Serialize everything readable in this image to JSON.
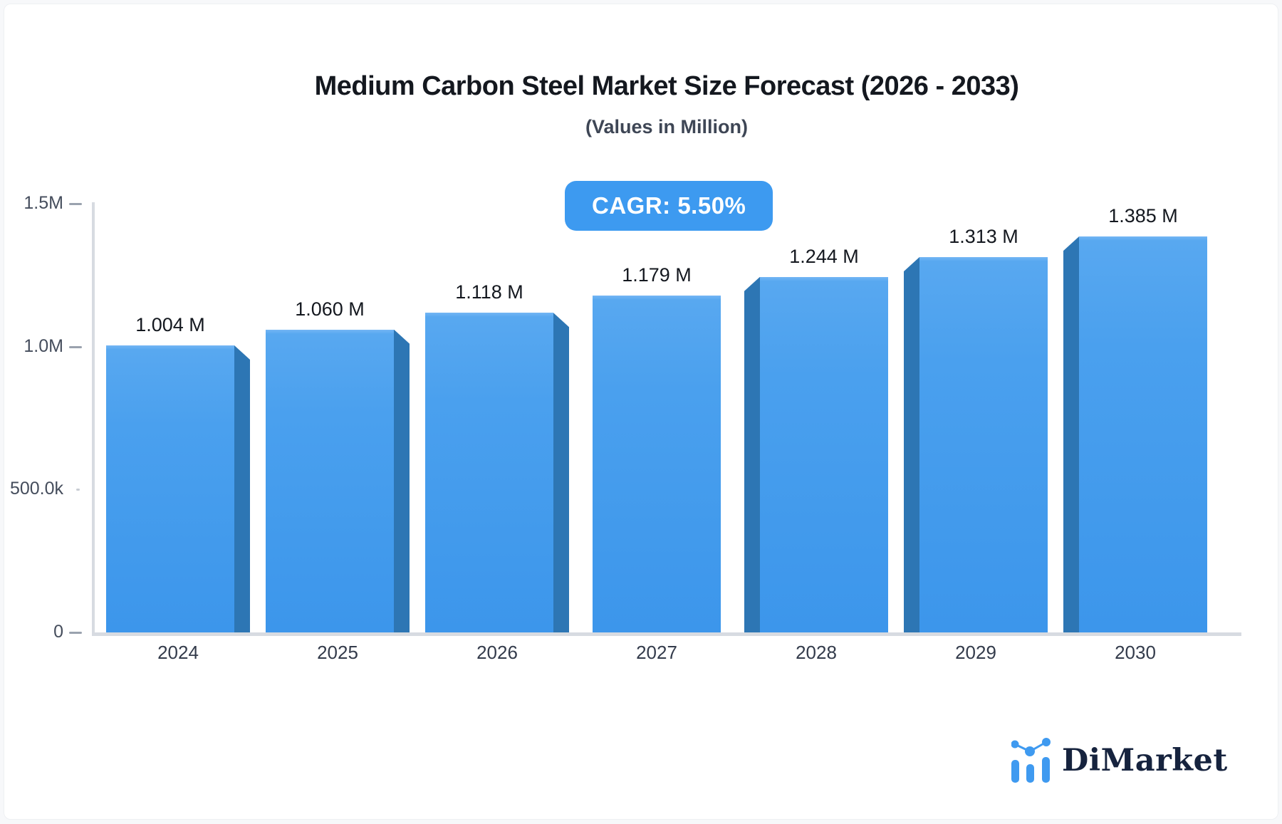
{
  "page": {
    "background": "#f7f8fa",
    "card_background": "#ffffff"
  },
  "header": {
    "title": "Medium Carbon Steel Market Size Forecast (2026 - 2033)",
    "subtitle": "(Values in Million)",
    "cagr_badge": "CAGR: 5.50%",
    "badge_color": "#3d9af0"
  },
  "chart_data": {
    "type": "bar",
    "title": "Medium Carbon Steel Market Size Forecast (2026 - 2033)",
    "subtitle": "(Values in Million)",
    "unit": "Million",
    "categories": [
      "2024",
      "2025",
      "2026",
      "2027",
      "2028",
      "2029",
      "2030"
    ],
    "values": [
      1.004,
      1.06,
      1.118,
      1.179,
      1.244,
      1.313,
      1.385
    ],
    "value_labels": [
      "1.004 M",
      "1.060 M",
      "1.118 M",
      "1.179 M",
      "1.244 M",
      "1.313 M",
      "1.385 M"
    ],
    "cagr": "5.50%",
    "ylim": [
      0,
      1.5
    ],
    "yticks": [
      {
        "label": "1.5M",
        "value": 1.5,
        "minor": false
      },
      {
        "label": "1.0M",
        "value": 1.0,
        "minor": false
      },
      {
        "label": "500.0k",
        "value": 0.5,
        "minor": true
      },
      {
        "label": "0",
        "value": 0.0,
        "minor": false
      }
    ],
    "grid": false,
    "legend": "none",
    "bar_color_top": "#58a8f0",
    "bar_color_bottom": "#3c96eb",
    "bar_side_color": "#2d76b4",
    "axis_color": "#d7dbe1"
  },
  "branding": {
    "logo_text": "DiMarket",
    "logo_color": "#16233e",
    "icon_color": "#3f9af0",
    "icon": "mini-bar-chart-with-trend-dots"
  }
}
